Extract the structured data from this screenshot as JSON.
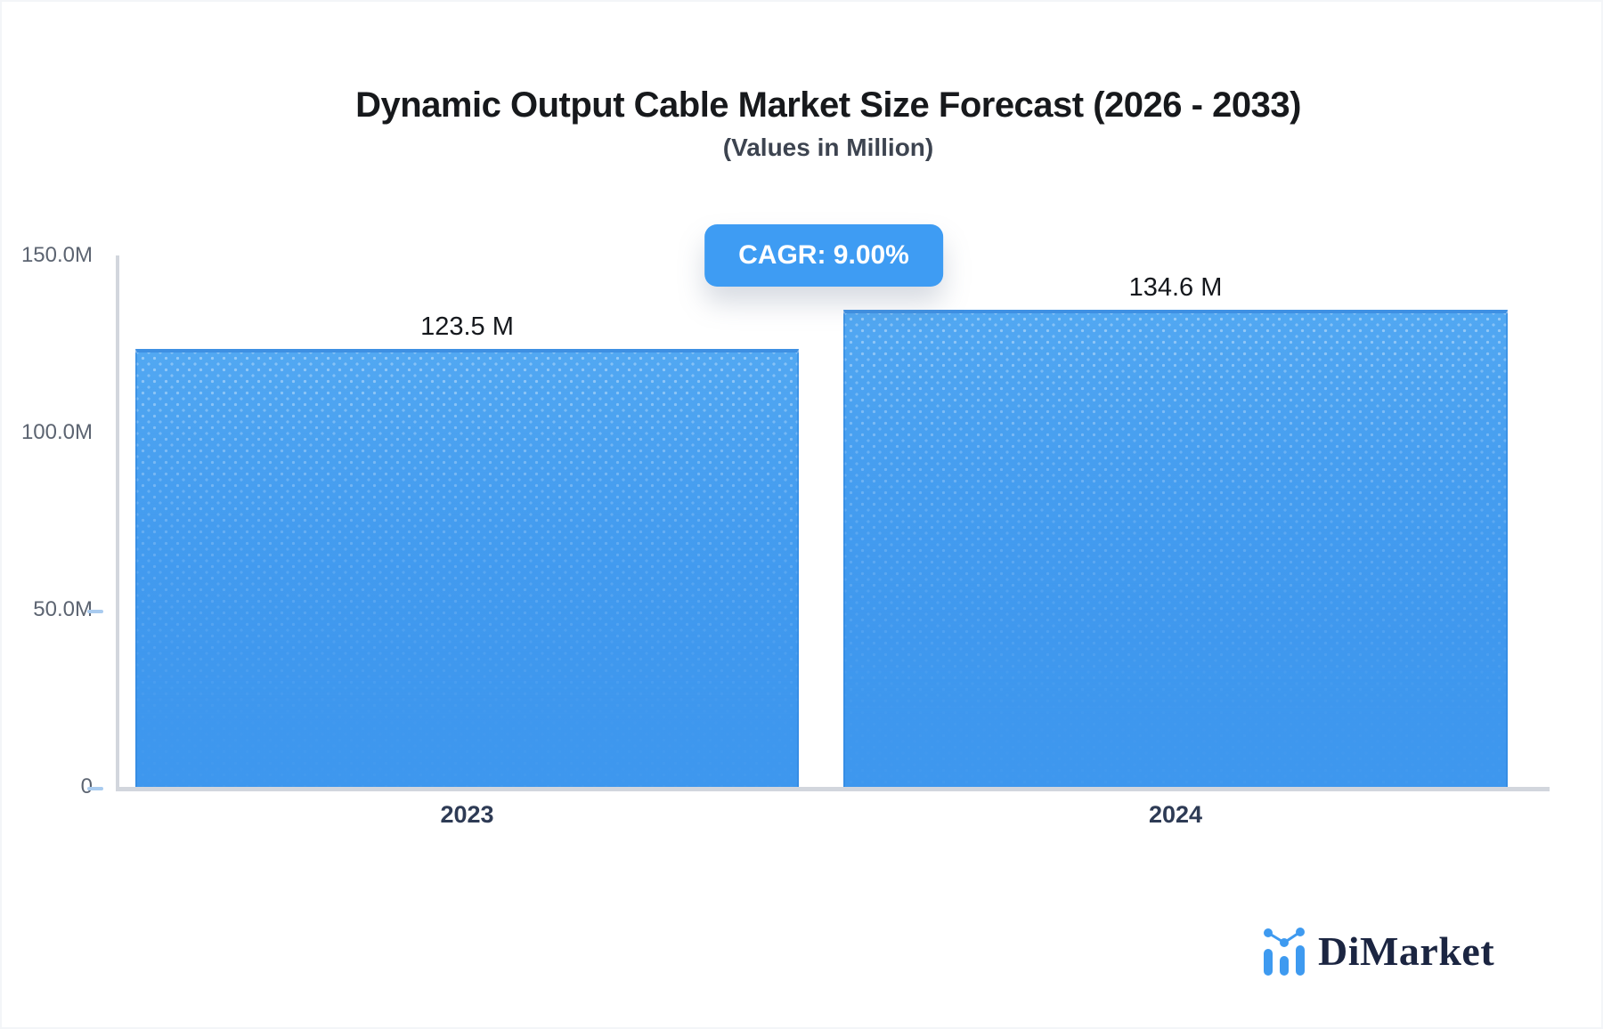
{
  "title": "Dynamic Output Cable Market Size Forecast (2026 - 2033)",
  "subtitle": "(Values in Million)",
  "badge": {
    "label": "CAGR: 9.00%",
    "color": "#3e9cf3"
  },
  "chart_data": {
    "type": "bar",
    "categories": [
      "2023",
      "2024"
    ],
    "values": [
      123.5,
      134.6
    ],
    "value_labels": [
      "123.5 M",
      "134.6 M"
    ],
    "unit": "Million",
    "ylim": [
      0,
      150
    ],
    "yticks": [
      {
        "value": 150,
        "label": "150.0M",
        "dash": false
      },
      {
        "value": 100,
        "label": "100.0M",
        "dash": false
      },
      {
        "value": 50,
        "label": "50.0M",
        "dash": true
      },
      {
        "value": 0,
        "label": "0",
        "dash": true
      }
    ],
    "grid": false,
    "legend": false,
    "bar_color_top": "#52a8f2",
    "bar_color_bottom": "#3e97ee",
    "bar_edge_color": "#3e90e3",
    "axis_color": "#d2d6dd",
    "tick_dash_color": "#a9cbef"
  },
  "logo": {
    "text": "DiMarket",
    "icon": "bar-chart-logo-icon",
    "icon_color": "#3e9af0",
    "text_color": "#1b2541"
  }
}
